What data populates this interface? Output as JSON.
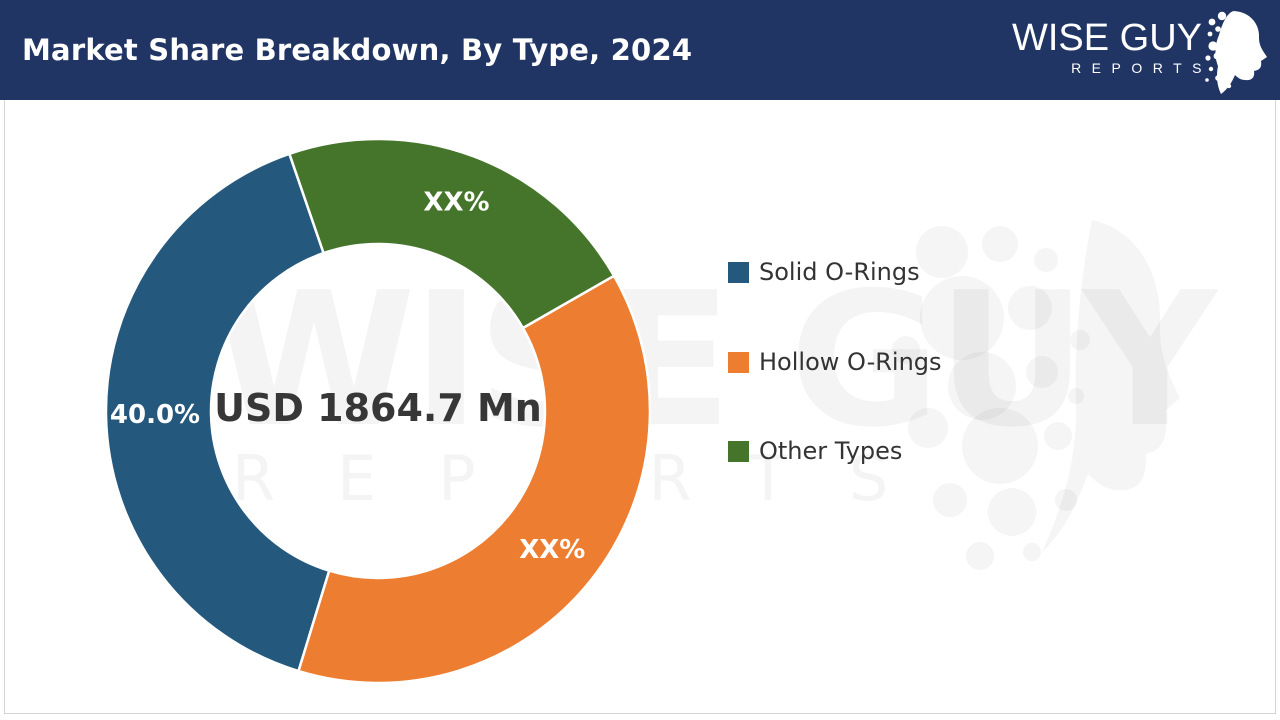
{
  "header": {
    "title": "Market Share Breakdown, By Type, 2024",
    "logo": {
      "line1": "WISE GUY",
      "line2": "REPORTS"
    }
  },
  "chart_data": {
    "type": "pie",
    "subtype": "donut",
    "title": "Market Share Breakdown, By Type, 2024",
    "center_label": "USD 1864.7 Mn",
    "start_angle_deg": 109,
    "direction": "counterclockwise",
    "inner_radius_ratio": 0.615,
    "legend_position": "right",
    "slices": [
      {
        "label": "Solid O-Rings",
        "value_pct": 40.0,
        "data_label": "40.0%",
        "color": "#24587D"
      },
      {
        "label": "Hollow O-Rings",
        "value_pct": 38.0,
        "data_label": "XX%",
        "color": "#ED7D31"
      },
      {
        "label": "Other Types",
        "value_pct": 22.0,
        "data_label": "XX%",
        "color": "#44752A"
      }
    ]
  },
  "watermark": {
    "line1": "WISE GUY",
    "line2": "REPORTS"
  },
  "colors": {
    "header_bg": "#213564",
    "accent_blue": "#24587D",
    "accent_orange": "#ED7D31",
    "accent_green": "#44752A"
  }
}
